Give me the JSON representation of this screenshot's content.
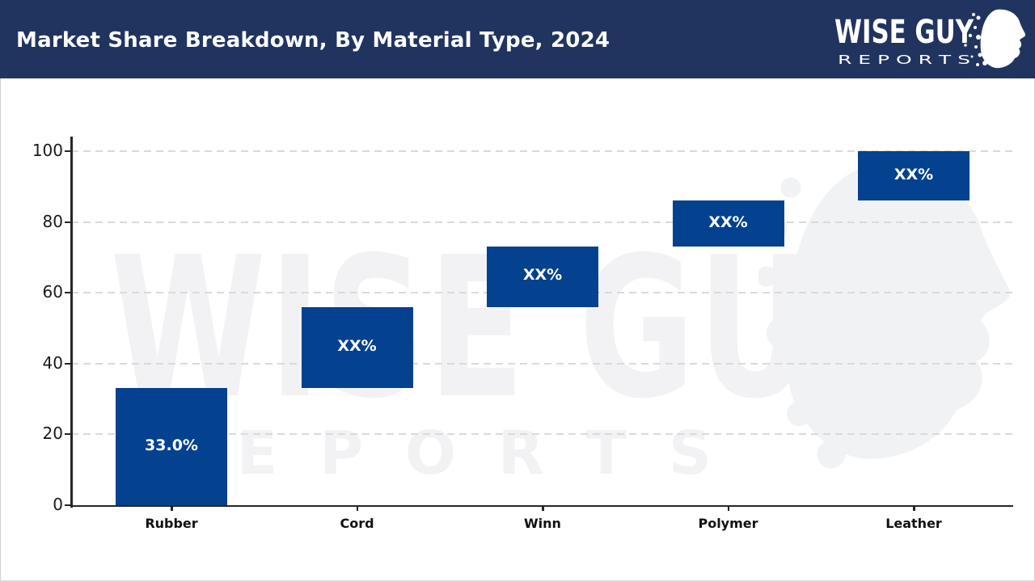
{
  "header": {
    "title": "Market Share Breakdown, By Material Type, 2024",
    "logo": {
      "name": "WISE GUY",
      "sub": "R E P O R T S"
    },
    "bg_color": "#21345F"
  },
  "watermark": {
    "name": "WISE GUY",
    "sub": "R E P O R T S"
  },
  "colors": {
    "header_bg": "#21345F",
    "bar": "#04418F",
    "bar_label": "#FFFFFF",
    "grid": "#DADADA",
    "axis": "#262626",
    "tick_label": "#1A1A1A",
    "watermark": "#F2F2F4"
  },
  "chart_data": {
    "type": "bar",
    "subtype": "waterfall",
    "title": "Market Share Breakdown, By Material Type, 2024",
    "xlabel": "",
    "ylabel": "",
    "ylim": [
      0,
      100
    ],
    "yticks": [
      0,
      20,
      40,
      60,
      80,
      100
    ],
    "grid": "horizontal-dashed",
    "legend": "none",
    "bar_color": "#04418F",
    "categories": [
      "Rubber",
      "Cord",
      "Winn",
      "Polymer",
      "Leather"
    ],
    "segments": [
      {
        "category": "Rubber",
        "start": 0,
        "end": 33,
        "value": 33,
        "label": "33.0%"
      },
      {
        "category": "Cord",
        "start": 33,
        "end": 56,
        "value": 23,
        "label": "XX%"
      },
      {
        "category": "Winn",
        "start": 56,
        "end": 73,
        "value": 17,
        "label": "XX%"
      },
      {
        "category": "Polymer",
        "start": 73,
        "end": 86,
        "value": 13,
        "label": "XX%"
      },
      {
        "category": "Leather",
        "start": 86,
        "end": 100,
        "value": 14,
        "label": "XX%"
      }
    ]
  }
}
